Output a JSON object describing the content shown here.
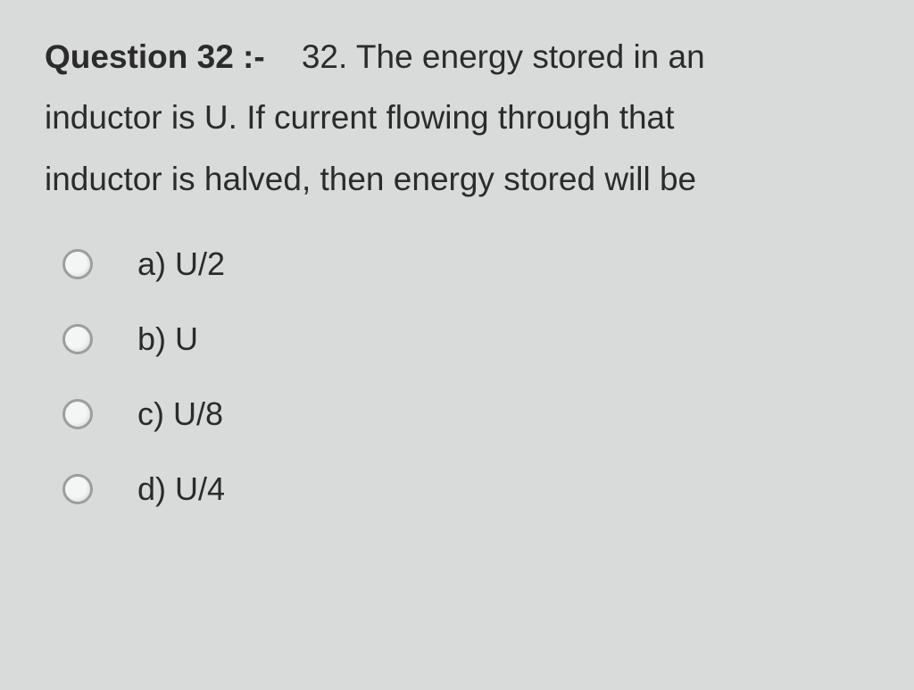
{
  "question": {
    "label": "Question 32 :-",
    "number": "32.",
    "text_line1": "The energy stored in an",
    "text_line2": "inductor is U. If current flowing through that",
    "text_line3": "inductor is halved, then energy stored will be"
  },
  "options": [
    {
      "label": "a) U/2"
    },
    {
      "label": "b) U"
    },
    {
      "label": "c) U/8"
    },
    {
      "label": "d) U/4"
    }
  ],
  "colors": {
    "background": "#d8dbda",
    "text": "#2b2b2b",
    "radio_border": "#9a9e9c",
    "radio_fill": "#f4f6f5"
  }
}
